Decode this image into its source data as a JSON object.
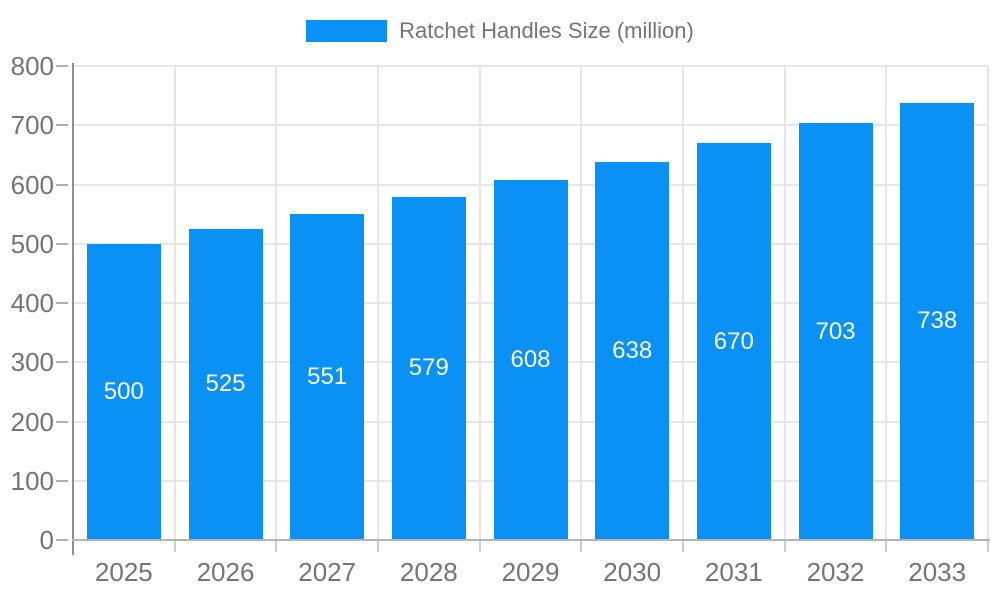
{
  "chart_data": {
    "type": "bar",
    "title": "Ratchet Handles Size (million)",
    "categories": [
      "2025",
      "2026",
      "2027",
      "2028",
      "2029",
      "2030",
      "2031",
      "2032",
      "2033"
    ],
    "series": [
      {
        "name": "Ratchet Handles Size (million)",
        "values": [
          500,
          525,
          551,
          579,
          608,
          638,
          670,
          703,
          738
        ]
      }
    ],
    "xlabel": "",
    "ylabel": "",
    "ylim": [
      0,
      800
    ],
    "yticks": [
      0,
      100,
      200,
      300,
      400,
      500,
      600,
      700,
      800
    ],
    "grid": true,
    "bar_value_labels_shown": true,
    "legend_position": "top",
    "colors": {
      "bar": "#0a91f5",
      "bar_value_label": "#ffffff",
      "axis_text": "#757575",
      "legend_text": "#757575",
      "grid_line": "#e6e6e6",
      "y_axis_line": "#8f8f8f",
      "x_axis_line": "#b3b3b3",
      "y_tick": "#b0b0b0",
      "x_tick": "#cccccc",
      "background": "#ffffff"
    }
  }
}
